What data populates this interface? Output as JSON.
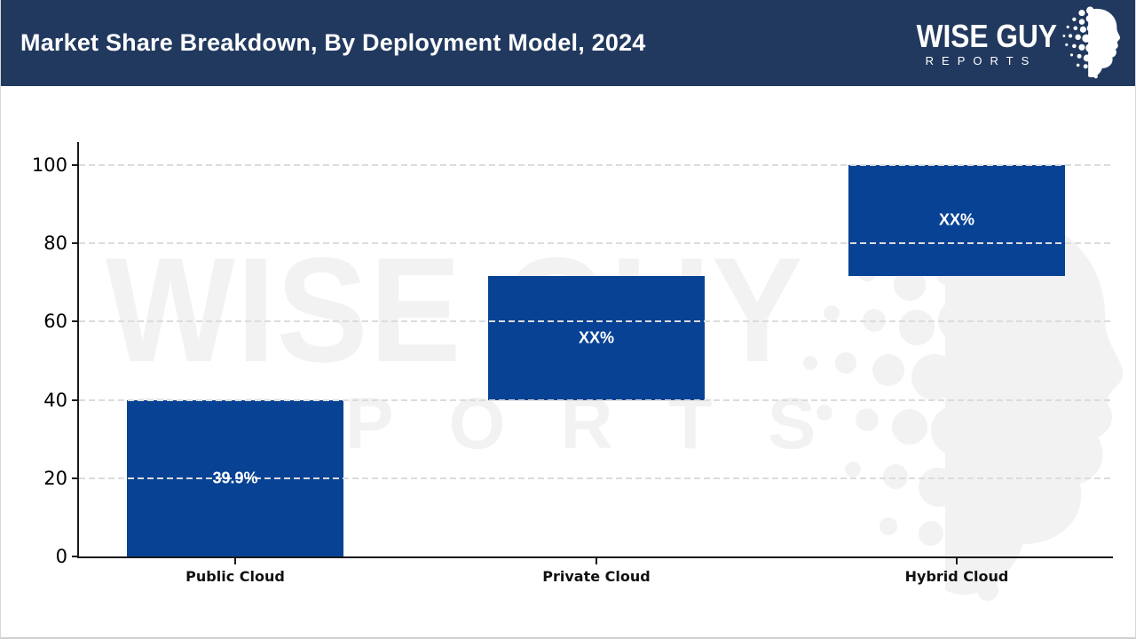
{
  "header": {
    "title": "Market Share Breakdown, By Deployment Model, 2024",
    "logo": {
      "line1": "WISE GUY",
      "line2": "REPORTS"
    }
  },
  "watermark": {
    "line1": "WISE GUY",
    "line2": "REPORTS"
  },
  "colors": {
    "header_bg": "#21395e",
    "bar": "#084294",
    "bar_label": "#ffffff",
    "grid": "#dcdcdc",
    "watermark": "#f2f2f2"
  },
  "chart_data": {
    "type": "bar",
    "subtype": "waterfall-stacked",
    "title": "Market Share Breakdown, By Deployment Model, 2024",
    "categories": [
      "Public Cloud",
      "Private Cloud",
      "Hybrid Cloud"
    ],
    "segments": [
      {
        "category": "Public Cloud",
        "start": 0,
        "end": 39.9,
        "label": "39.9%"
      },
      {
        "category": "Private Cloud",
        "start": 39.9,
        "end": 71.7,
        "label": "XX%"
      },
      {
        "category": "Hybrid Cloud",
        "start": 71.7,
        "end": 100,
        "label": "XX%"
      }
    ],
    "y_ticks": [
      0,
      20,
      40,
      60,
      80,
      100
    ],
    "ylim": [
      0,
      105
    ],
    "xlabel": "",
    "ylabel": "",
    "grid": "horizontal-dashed",
    "legend": "none"
  }
}
